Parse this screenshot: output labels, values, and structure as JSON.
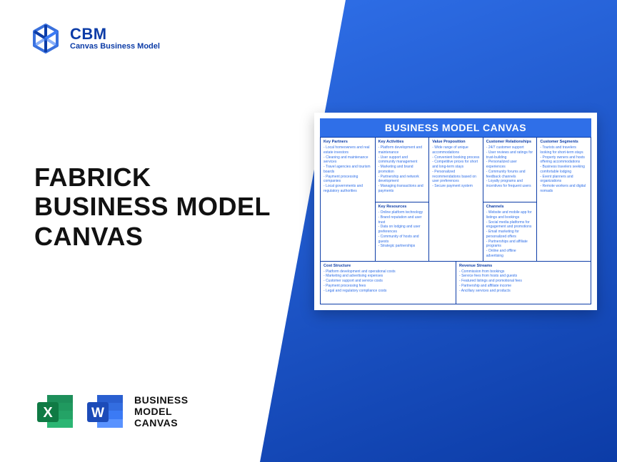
{
  "colors": {
    "brand_blue": "#0c3ca7",
    "accent_blue": "#2f6fe8",
    "excel_green": "#1d8f5a",
    "excel_green_dark": "#0f7a44",
    "word_blue": "#2a5fd0",
    "word_blue_dark": "#1c4bb8",
    "text_dark": "#111111",
    "white": "#ffffff"
  },
  "logo": {
    "brand": "CBM",
    "subtitle": "Canvas Business Model"
  },
  "title": {
    "line1": "FABRICK",
    "line2": "BUSINESS MODEL",
    "line3": "CANVAS"
  },
  "formats": {
    "line1": "BUSINESS",
    "line2": "MODEL",
    "line3": "CANVAS",
    "excel_letter": "X",
    "word_letter": "W"
  },
  "canvas": {
    "title": "BUSINESS MODEL CANVAS",
    "sections": {
      "key_partners": {
        "label": "Key Partners",
        "items": [
          "Local homeowners and real estate investors",
          "Cleaning and maintenance services",
          "Travel agencies and tourism boards",
          "Payment processing companies",
          "Local governments and regulatory authorities"
        ]
      },
      "key_activities": {
        "label": "Key Activities",
        "items": [
          "Platform development and maintenance",
          "User support and community management",
          "Marketing and brand promotion",
          "Partnership and network development",
          "Managing transactions and payments"
        ]
      },
      "key_resources": {
        "label": "Key Resources",
        "items": [
          "Online platform technology",
          "Brand reputation and user trust",
          "Data on lodging and user preferences",
          "Community of hosts and guests",
          "Strategic partnerships"
        ]
      },
      "value_proposition": {
        "label": "Value Proposition",
        "items": [
          "Wide range of unique accommodations",
          "Convenient booking process",
          "Competitive prices for short and long-term stays",
          "Personalized recommendations based on user preferences",
          "Secure payment system"
        ]
      },
      "customer_relationships": {
        "label": "Customer Relationships",
        "items": [
          "24/7 customer support",
          "User reviews and ratings for trust-building",
          "Personalized user experiences",
          "Community forums and feedback channels",
          "Loyalty programs and incentives for frequent users"
        ]
      },
      "channels": {
        "label": "Channels",
        "items": [
          "Website and mobile app for listings and bookings",
          "Social media platforms for engagement and promotions",
          "Email marketing for personalized offers",
          "Partnerships and affiliate programs",
          "Online and offline advertising"
        ]
      },
      "customer_segments": {
        "label": "Customer Segments",
        "items": [
          "Tourists and travelers looking for short-term stays",
          "Property owners and hosts offering accommodations",
          "Business travelers seeking comfortable lodging",
          "Event planners and organizations",
          "Remote workers and digital nomads"
        ]
      },
      "cost_structure": {
        "label": "Cost Structure",
        "items": [
          "Platform development and operational costs",
          "Marketing and advertising expenses",
          "Customer support and service costs",
          "Payment processing fees",
          "Legal and regulatory compliance costs"
        ]
      },
      "revenue_streams": {
        "label": "Revenue Streams",
        "items": [
          "Commission from bookings",
          "Service fees from hosts and guests",
          "Featured listings and promotional fees",
          "Partnership and affiliate income",
          "Ancillary services and products"
        ]
      }
    }
  }
}
